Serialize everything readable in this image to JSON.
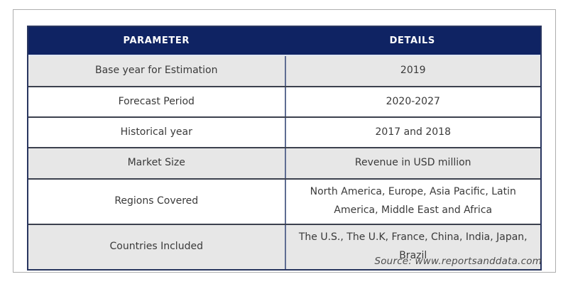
{
  "chart_data": {
    "type": "table",
    "title": "",
    "columns": [
      "PARAMETER",
      "DETAILS"
    ],
    "rows": [
      [
        "Base year for Estimation",
        "2019"
      ],
      [
        "Forecast Period",
        "2020-2027"
      ],
      [
        "Historical year",
        "2017 and 2018"
      ],
      [
        "Market Size",
        "Revenue in USD million"
      ],
      [
        "Regions Covered",
        "North America, Europe, Asia Pacific, Latin America, Middle East and Africa"
      ],
      [
        "Countries Included",
        "The U.S., The U.K, France, China, India, Japan, Brazil"
      ]
    ],
    "shaded_row_indices": [
      0,
      3,
      5
    ],
    "layout": "two equal centered columns, header row navy, alternating shaded rows, grid lines on"
  },
  "source_note": "Source: www.reportsanddata.com",
  "colors": {
    "header_bg": "#0f2363",
    "header_text": "#ffffff",
    "shaded_row_bg": "#e7e7e7",
    "row_bg": "#ffffff",
    "body_text": "#3a3a3a",
    "table_border": "#28355f",
    "row_separator": "#3c414e",
    "column_divider": "#5f6d92",
    "frame_border": "#aeaeae",
    "source_text": "#4d4d4d"
  }
}
